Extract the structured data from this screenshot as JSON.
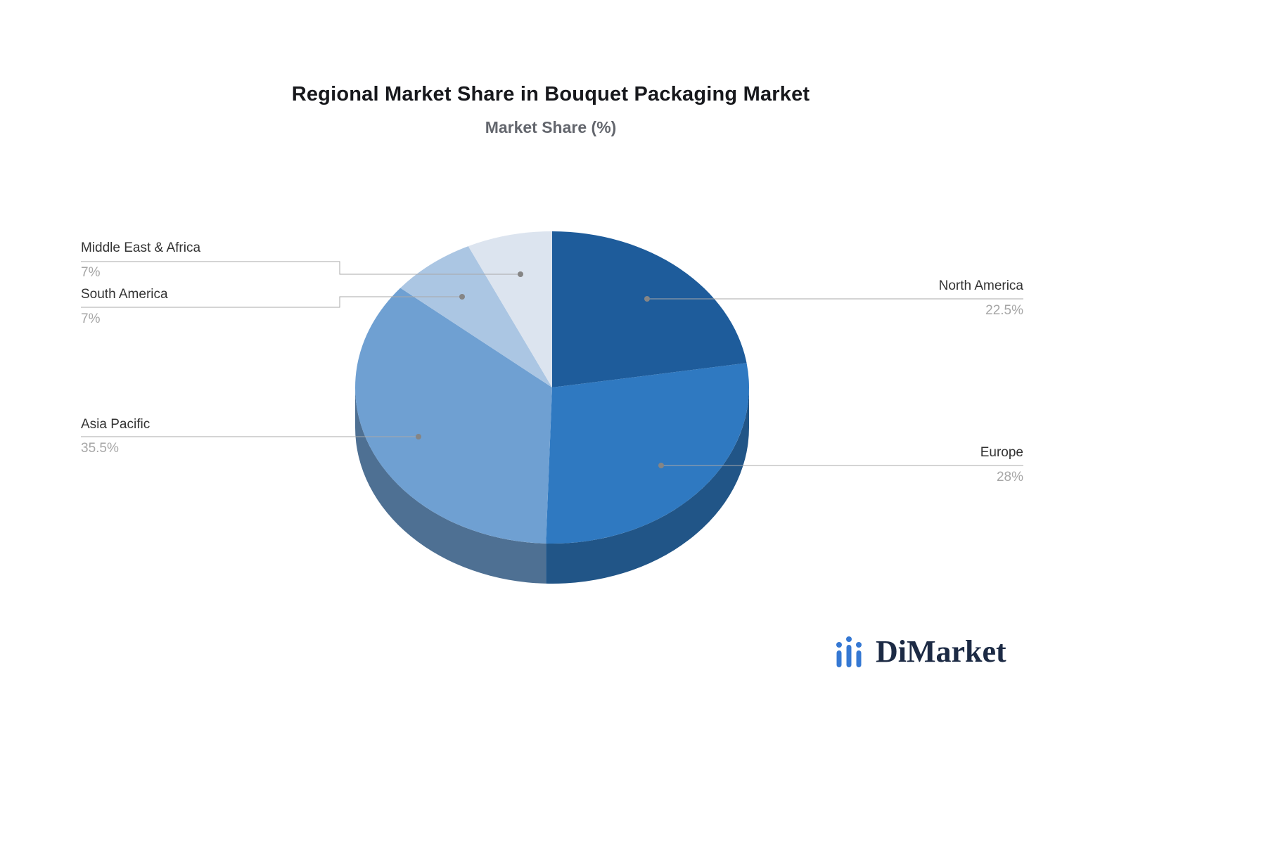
{
  "title": "Regional Market Share in Bouquet Packaging Market",
  "subtitle": "Market Share (%)",
  "brand": {
    "name": "DiMarket",
    "icon": "bar-chart-logo-icon",
    "icon_color": "#3578d3",
    "text_color": "#1c2a44"
  },
  "chart_data": {
    "type": "pie",
    "title": "Regional Market Share in Bouquet Packaging Market",
    "subtitle": "Market Share (%)",
    "unit": "%",
    "direction": "clockwise",
    "start_angle_deg": 0,
    "effect": "3d-depth",
    "legend_position": "none",
    "series": [
      {
        "name": "North America",
        "value": 22.5,
        "label": "22.5%",
        "color": "#1e5c9b"
      },
      {
        "name": "Europe",
        "value": 28,
        "label": "28%",
        "color": "#2f79c1"
      },
      {
        "name": "Asia Pacific",
        "value": 35.5,
        "label": "35.5%",
        "color": "#6fa0d2"
      },
      {
        "name": "South America",
        "value": 7,
        "label": "7%",
        "color": "#abc6e3"
      },
      {
        "name": "Middle East & Africa",
        "value": 7,
        "label": "7%",
        "color": "#dce4ef"
      }
    ],
    "style": {
      "name_color": "#333333",
      "value_color": "#a6a6a6",
      "connector_color": "#a8a8a8",
      "connector_dot_color": "#858585"
    }
  }
}
